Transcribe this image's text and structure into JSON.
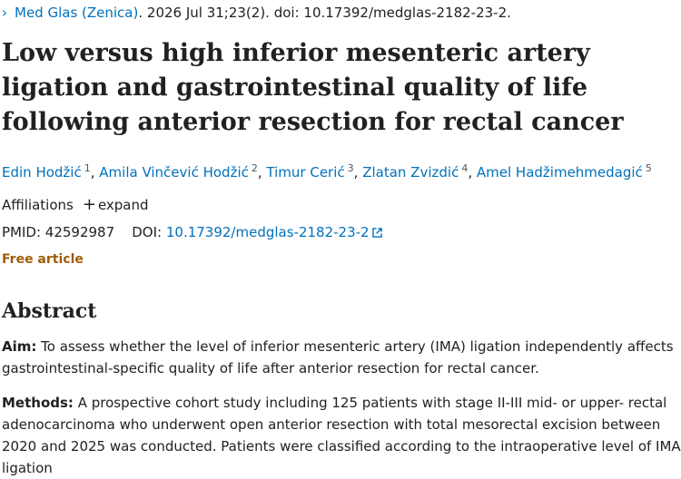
{
  "citation": {
    "journal": "Med Glas (Zenica)",
    "details": ". 2026 Jul 31;23(2). doi: 10.17392/medglas-2182-23-2."
  },
  "title": "Low versus high inferior mesenteric artery ligation and gastrointestinal quality of life following anterior resection for rectal cancer",
  "author_separator": ",",
  "authors": [
    {
      "name": "Edin Hodžić",
      "affiliation": "1"
    },
    {
      "name": "Amila Vinčević Hodžić",
      "affiliation": "2"
    },
    {
      "name": "Timur Cerić",
      "affiliation": "3"
    },
    {
      "name": "Zlatan Zvizdić",
      "affiliation": "4"
    },
    {
      "name": "Amel Hadžimehmedagić",
      "affiliation": "5"
    }
  ],
  "affiliations": {
    "label": "Affiliations",
    "action": "expand"
  },
  "identifiers": {
    "pmid_label": "PMID:",
    "pmid": "42592987",
    "doi_label": "DOI:",
    "doi": "10.17392/medglas-2182-23-2"
  },
  "access": "Free article",
  "abstract": {
    "heading": "Abstract",
    "sections": [
      {
        "label": "Aim:",
        "text": "To assess whether the level of inferior mesenteric artery (IMA) ligation independently affects gastrointestinal-specific quality of life after anterior resection for rectal cancer."
      },
      {
        "label": "Methods:",
        "text": "A prospective cohort study including 125 patients with stage II-III mid- or upper- rectal adenocarcinoma who underwent open anterior resection with total mesorectal excision between 2020 and 2025 was conducted. Patients were classified according to the intraoperative level of IMA ligation"
      }
    ]
  }
}
